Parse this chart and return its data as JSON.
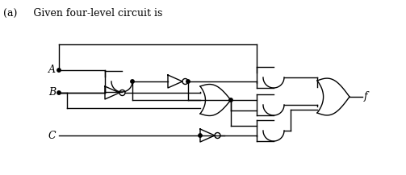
{
  "title": "(a)     Given four-level circuit is",
  "label_A": "A",
  "label_B": "B",
  "label_C": "C",
  "label_f": "f",
  "bg_color": "#ffffff",
  "line_color": "#000000",
  "lw": 1.0
}
